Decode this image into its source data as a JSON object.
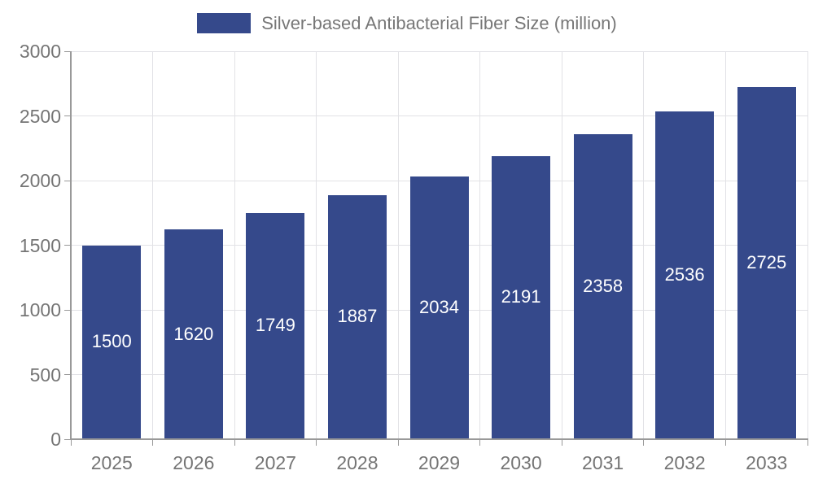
{
  "legend": {
    "label": "Silver-based Antibacterial Fiber Size (million)"
  },
  "colors": {
    "bar": "#35498B",
    "grid_line": "#E2E2E6",
    "axis_line": "#999999",
    "tick_label": "#757575",
    "legend_text": "#777777",
    "value_label": "#FFFFFF",
    "background": "#FFFFFF"
  },
  "chart_data": {
    "type": "bar",
    "title": "Silver-based Antibacterial Fiber Size (million)",
    "categories": [
      "2025",
      "2026",
      "2027",
      "2028",
      "2029",
      "2030",
      "2031",
      "2032",
      "2033"
    ],
    "values": [
      1500,
      1620,
      1749,
      1887,
      2034,
      2191,
      2358,
      2536,
      2725
    ],
    "xlabel": "",
    "ylabel": "",
    "ylim": [
      0,
      3000
    ],
    "ytick_interval": 500,
    "grid": true,
    "legend_position": "top-center",
    "value_label_position": "inside-center",
    "value_label_color": "#FFFFFF"
  }
}
